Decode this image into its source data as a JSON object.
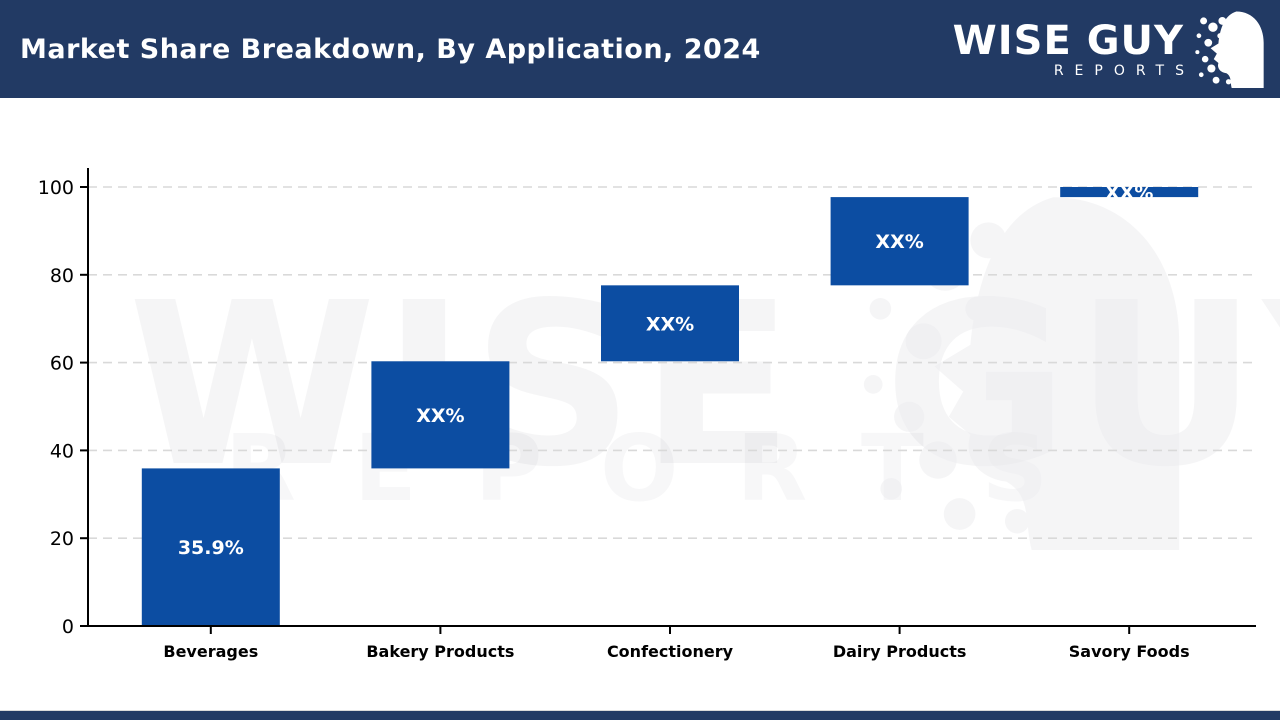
{
  "header": {
    "title": "Market Share Breakdown, By Application, 2024",
    "bg_color": "#223a64",
    "logo": {
      "line1": "WISE GUY",
      "line2": "REPORTS",
      "face_icon": "dotted-head-profile"
    }
  },
  "watermark": {
    "text1": "WISE GUY",
    "text2": "REPORTS",
    "face_icon": "dotted-head-profile"
  },
  "chart_data": {
    "type": "bar",
    "subtype": "waterfall",
    "title": "Market Share Breakdown, By Application, 2024",
    "categories": [
      "Beverages",
      "Bakery Products",
      "Confectionery",
      "Dairy Products",
      "Savory Foods"
    ],
    "segments": [
      {
        "category": "Beverages",
        "start": 0,
        "end": 35.9,
        "label": "35.9%"
      },
      {
        "category": "Bakery Products",
        "start": 35.9,
        "end": 60.3,
        "label": "XX%"
      },
      {
        "category": "Confectionery",
        "start": 60.3,
        "end": 77.6,
        "label": "XX%"
      },
      {
        "category": "Dairy Products",
        "start": 77.6,
        "end": 97.7,
        "label": "XX%"
      },
      {
        "category": "Savory Foods",
        "start": 97.7,
        "end": 100,
        "label": "XX%"
      }
    ],
    "yticks": [
      0,
      20,
      40,
      60,
      80,
      100
    ],
    "ylim": [
      0,
      104
    ],
    "xlabel": "",
    "ylabel": "",
    "grid": "horizontal-dashed",
    "legend": "none",
    "bar_color": "#0c4da2",
    "bar_label_color": "#ffffff",
    "axis_color": "#000000",
    "grid_color": "#d9d9d9"
  },
  "footer": {
    "bg_color": "#223a64"
  }
}
